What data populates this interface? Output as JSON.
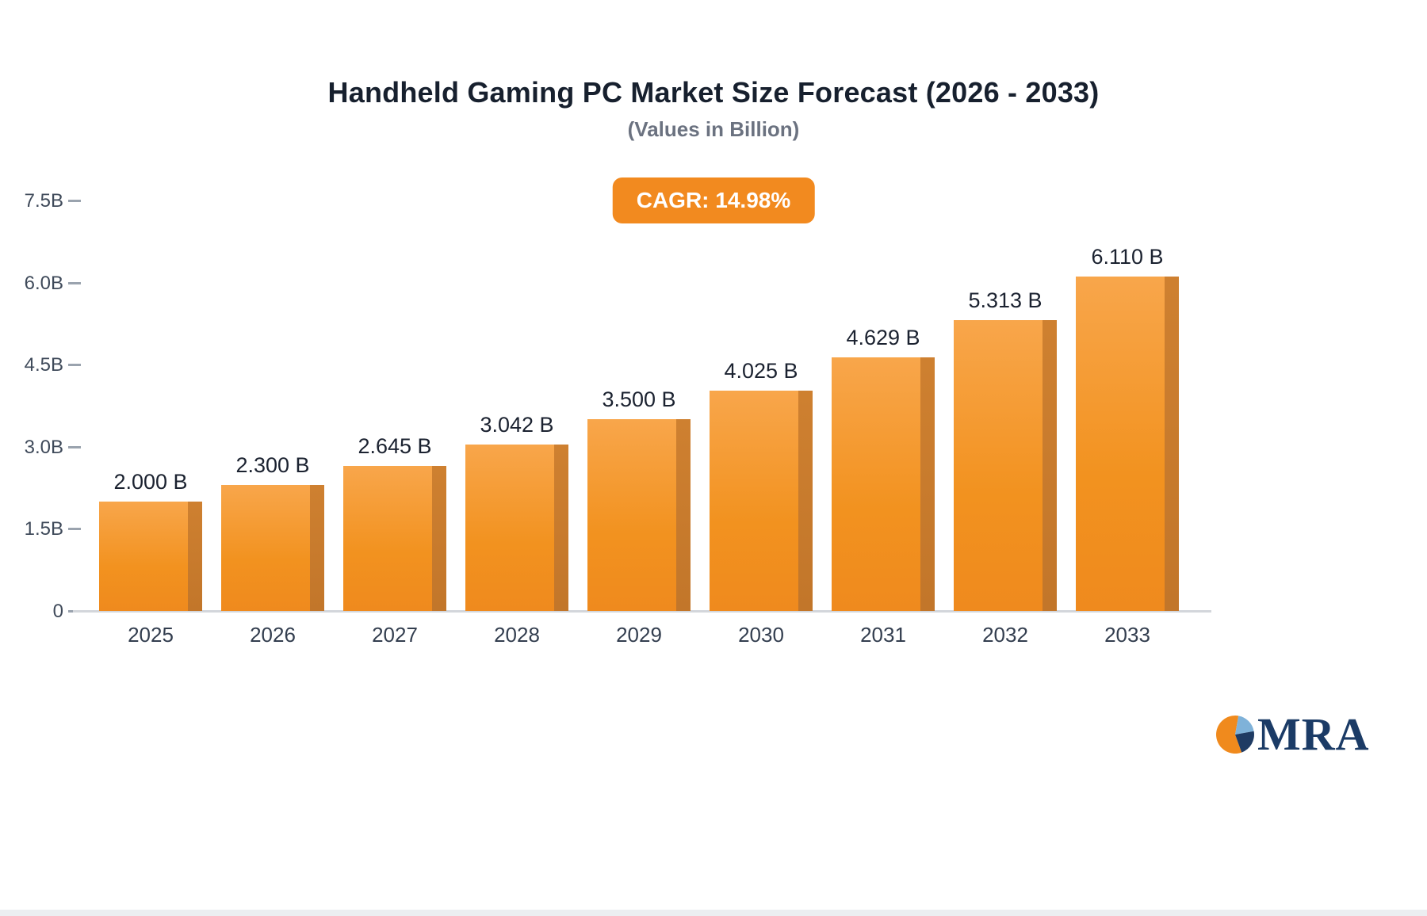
{
  "header": {
    "title": "Handheld Gaming PC Market Size Forecast (2026 - 2033)",
    "subtitle": "(Values in Billion)",
    "cagr_badge": "CAGR: 14.98%"
  },
  "chart_data": {
    "type": "bar",
    "title": "Handheld Gaming PC Market Size Forecast (2026 - 2033)",
    "subtitle": "(Values in Billion)",
    "annotation": "CAGR: 14.98%",
    "categories": [
      "2025",
      "2026",
      "2027",
      "2028",
      "2029",
      "2030",
      "2031",
      "2032",
      "2033"
    ],
    "values": [
      2.0,
      2.3,
      2.645,
      3.042,
      3.5,
      4.025,
      4.629,
      5.313,
      6.11
    ],
    "value_labels": [
      "2.000 B",
      "2.300 B",
      "2.645 B",
      "3.042 B",
      "3.500 B",
      "4.025 B",
      "4.629 B",
      "5.313 B",
      "6.110 B"
    ],
    "xlabel": "",
    "ylabel": "",
    "ylim": [
      0,
      7.5
    ],
    "y_ticks": [
      {
        "label": "7.5B",
        "value": 7.5
      },
      {
        "label": "6.0B",
        "value": 6.0
      },
      {
        "label": "4.5B",
        "value": 4.5
      },
      {
        "label": "3.0B",
        "value": 3.0
      },
      {
        "label": "1.5B",
        "value": 1.5
      },
      {
        "label": "0",
        "value": 0
      }
    ],
    "grid": false,
    "legend": "none",
    "colors": {
      "bar_front_top": "#F8A64B",
      "bar_front_bottom": "#EF8A1E",
      "bar_side": "#C2762A",
      "badge_background": "#F28A1F",
      "badge_text": "#FFFFFF",
      "title_text": "#17202E",
      "subtitle_text": "#6B7280"
    }
  },
  "logo": {
    "text": "MRA",
    "colors": {
      "orange": "#F08A1D",
      "light_blue": "#7FB2D9",
      "navy": "#1F3B63",
      "text": "#1B3B66"
    }
  }
}
